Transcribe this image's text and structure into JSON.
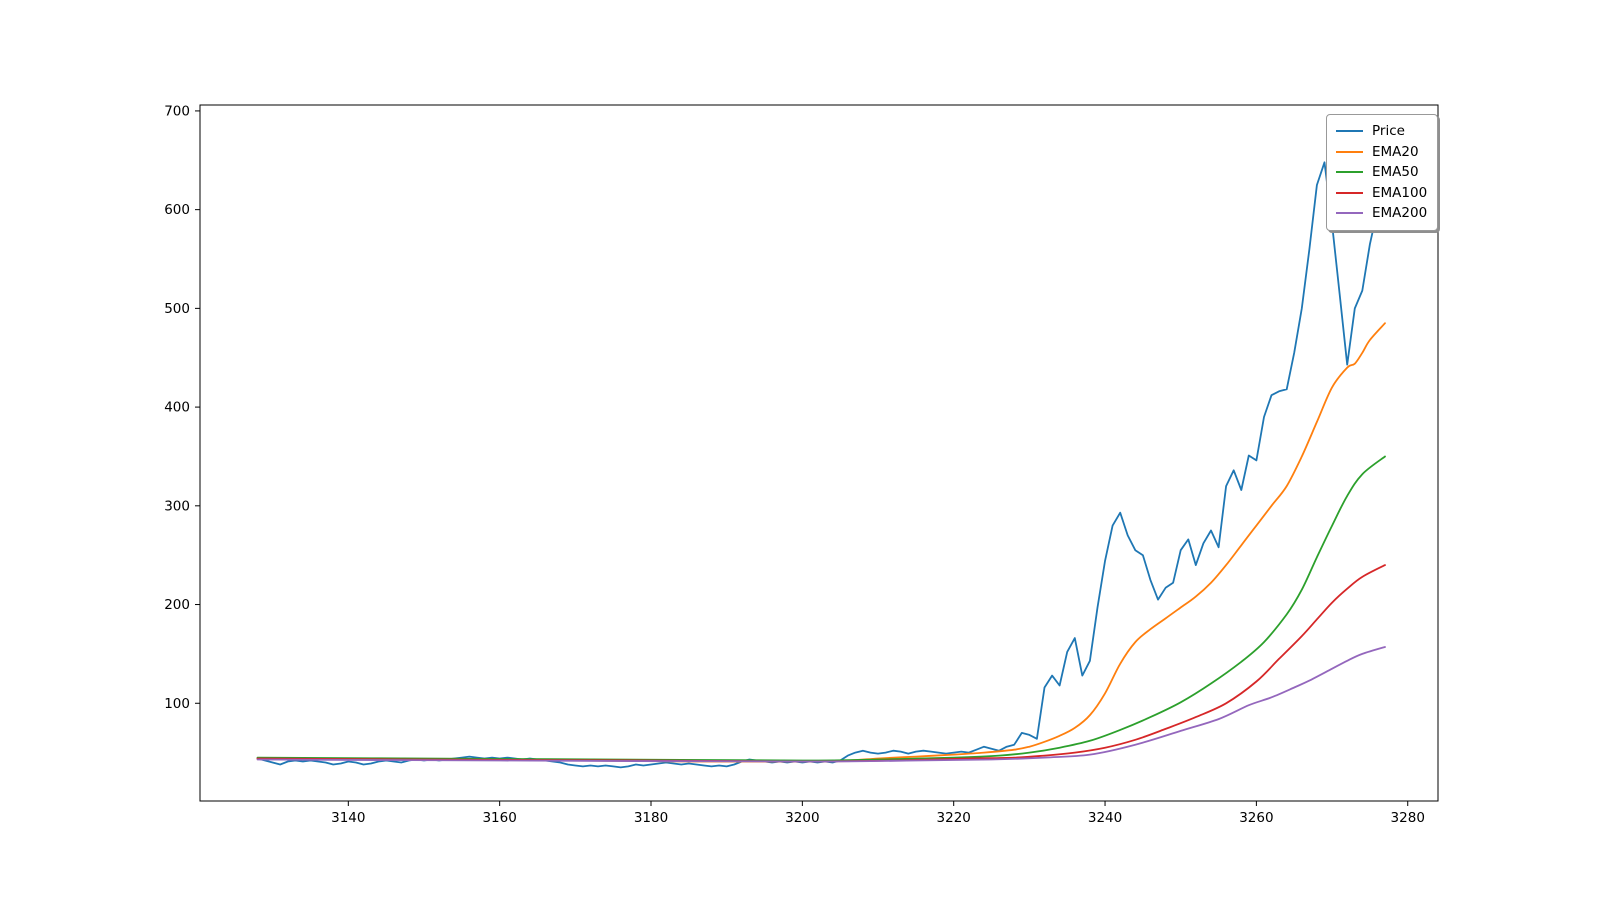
{
  "figure": {
    "background": "#ffffff",
    "axis_color": "#000000",
    "tick_color": "#000000"
  },
  "legend": {
    "position": "upper right",
    "entries": [
      {
        "label": "Price",
        "color": "#1f77b4"
      },
      {
        "label": "EMA20",
        "color": "#ff7f0e"
      },
      {
        "label": "EMA50",
        "color": "#2ca02c"
      },
      {
        "label": "EMA100",
        "color": "#d62728"
      },
      {
        "label": "EMA200",
        "color": "#9467bd"
      }
    ]
  },
  "chart_data": {
    "type": "line",
    "title": "",
    "xlabel": "",
    "ylabel": "",
    "grid": false,
    "legend_position": "upper right",
    "xlim": [
      3120.4,
      3284.0
    ],
    "ylim": [
      1,
      706
    ],
    "x_ticks": [
      3140,
      3160,
      3180,
      3200,
      3220,
      3240,
      3260,
      3280
    ],
    "y_ticks": [
      100,
      200,
      300,
      400,
      500,
      600,
      700
    ],
    "series": [
      {
        "name": "Price",
        "color": "#1f77b4",
        "smooth": false,
        "points": [
          [
            3128,
            44
          ],
          [
            3129,
            42
          ],
          [
            3130,
            40
          ],
          [
            3131,
            38
          ],
          [
            3132,
            41
          ],
          [
            3133,
            42
          ],
          [
            3134,
            41
          ],
          [
            3135,
            42
          ],
          [
            3136,
            41
          ],
          [
            3137,
            40
          ],
          [
            3138,
            38
          ],
          [
            3139,
            39
          ],
          [
            3140,
            41
          ],
          [
            3141,
            40
          ],
          [
            3142,
            38
          ],
          [
            3143,
            39
          ],
          [
            3144,
            41
          ],
          [
            3145,
            42
          ],
          [
            3146,
            41
          ],
          [
            3147,
            40
          ],
          [
            3148,
            42
          ],
          [
            3149,
            43
          ],
          [
            3150,
            42
          ],
          [
            3151,
            43
          ],
          [
            3152,
            42
          ],
          [
            3153,
            43
          ],
          [
            3154,
            44
          ],
          [
            3155,
            45
          ],
          [
            3156,
            46
          ],
          [
            3157,
            45
          ],
          [
            3158,
            44
          ],
          [
            3159,
            45
          ],
          [
            3160,
            44
          ],
          [
            3161,
            45
          ],
          [
            3162,
            44
          ],
          [
            3163,
            43
          ],
          [
            3164,
            44
          ],
          [
            3165,
            43
          ],
          [
            3166,
            42
          ],
          [
            3167,
            41
          ],
          [
            3168,
            40
          ],
          [
            3169,
            38
          ],
          [
            3170,
            37
          ],
          [
            3171,
            36
          ],
          [
            3172,
            37
          ],
          [
            3173,
            36
          ],
          [
            3174,
            37
          ],
          [
            3175,
            36
          ],
          [
            3176,
            35
          ],
          [
            3177,
            36
          ],
          [
            3178,
            38
          ],
          [
            3179,
            37
          ],
          [
            3180,
            38
          ],
          [
            3181,
            39
          ],
          [
            3182,
            40
          ],
          [
            3183,
            39
          ],
          [
            3184,
            38
          ],
          [
            3185,
            39
          ],
          [
            3186,
            38
          ],
          [
            3187,
            37
          ],
          [
            3188,
            36
          ],
          [
            3189,
            37
          ],
          [
            3190,
            36
          ],
          [
            3191,
            38
          ],
          [
            3192,
            41
          ],
          [
            3193,
            43
          ],
          [
            3194,
            42
          ],
          [
            3195,
            41
          ],
          [
            3196,
            40
          ],
          [
            3197,
            41
          ],
          [
            3198,
            40
          ],
          [
            3199,
            41
          ],
          [
            3200,
            40
          ],
          [
            3201,
            41
          ],
          [
            3202,
            40
          ],
          [
            3203,
            41
          ],
          [
            3204,
            40
          ],
          [
            3205,
            42
          ],
          [
            3206,
            47
          ],
          [
            3207,
            50
          ],
          [
            3208,
            52
          ],
          [
            3209,
            50
          ],
          [
            3210,
            49
          ],
          [
            3211,
            50
          ],
          [
            3212,
            52
          ],
          [
            3213,
            51
          ],
          [
            3214,
            49
          ],
          [
            3215,
            51
          ],
          [
            3216,
            52
          ],
          [
            3217,
            51
          ],
          [
            3218,
            50
          ],
          [
            3219,
            49
          ],
          [
            3220,
            50
          ],
          [
            3221,
            51
          ],
          [
            3222,
            50
          ],
          [
            3223,
            53
          ],
          [
            3224,
            56
          ],
          [
            3225,
            54
          ],
          [
            3226,
            52
          ],
          [
            3227,
            56
          ],
          [
            3228,
            58
          ],
          [
            3229,
            70
          ],
          [
            3230,
            68
          ],
          [
            3231,
            64
          ],
          [
            3232,
            116
          ],
          [
            3233,
            128
          ],
          [
            3234,
            118
          ],
          [
            3235,
            152
          ],
          [
            3236,
            166
          ],
          [
            3237,
            128
          ],
          [
            3238,
            143
          ],
          [
            3239,
            197
          ],
          [
            3240,
            244
          ],
          [
            3241,
            280
          ],
          [
            3242,
            293
          ],
          [
            3243,
            270
          ],
          [
            3244,
            255
          ],
          [
            3245,
            250
          ],
          [
            3246,
            225
          ],
          [
            3247,
            205
          ],
          [
            3248,
            217
          ],
          [
            3249,
            222
          ],
          [
            3250,
            255
          ],
          [
            3251,
            266
          ],
          [
            3252,
            240
          ],
          [
            3253,
            262
          ],
          [
            3254,
            275
          ],
          [
            3255,
            258
          ],
          [
            3256,
            320
          ],
          [
            3257,
            336
          ],
          [
            3258,
            316
          ],
          [
            3259,
            351
          ],
          [
            3260,
            346
          ],
          [
            3261,
            390
          ],
          [
            3262,
            412
          ],
          [
            3263,
            416
          ],
          [
            3264,
            418
          ],
          [
            3265,
            455
          ],
          [
            3266,
            500
          ],
          [
            3267,
            560
          ],
          [
            3268,
            625
          ],
          [
            3269,
            648
          ],
          [
            3270,
            585
          ],
          [
            3271,
            515
          ],
          [
            3272,
            443
          ],
          [
            3273,
            500
          ],
          [
            3274,
            518
          ],
          [
            3275,
            565
          ],
          [
            3276,
            600
          ],
          [
            3277,
            628
          ]
        ]
      },
      {
        "name": "EMA20",
        "color": "#ff7f0e",
        "smooth": true,
        "points": [
          [
            3128,
            44
          ],
          [
            3140,
            43
          ],
          [
            3155,
            43
          ],
          [
            3170,
            42
          ],
          [
            3185,
            41
          ],
          [
            3200,
            41
          ],
          [
            3206,
            42
          ],
          [
            3210,
            44
          ],
          [
            3215,
            46
          ],
          [
            3220,
            48
          ],
          [
            3224,
            50
          ],
          [
            3228,
            53
          ],
          [
            3230,
            56
          ],
          [
            3232,
            61
          ],
          [
            3234,
            67
          ],
          [
            3236,
            75
          ],
          [
            3238,
            88
          ],
          [
            3240,
            110
          ],
          [
            3242,
            140
          ],
          [
            3244,
            162
          ],
          [
            3246,
            175
          ],
          [
            3248,
            186
          ],
          [
            3250,
            197
          ],
          [
            3252,
            208
          ],
          [
            3254,
            222
          ],
          [
            3256,
            240
          ],
          [
            3258,
            260
          ],
          [
            3260,
            280
          ],
          [
            3262,
            300
          ],
          [
            3264,
            320
          ],
          [
            3266,
            350
          ],
          [
            3268,
            385
          ],
          [
            3270,
            420
          ],
          [
            3272,
            440
          ],
          [
            3273,
            444
          ],
          [
            3274,
            455
          ],
          [
            3275,
            468
          ],
          [
            3277,
            485
          ]
        ]
      },
      {
        "name": "EMA50",
        "color": "#2ca02c",
        "smooth": true,
        "points": [
          [
            3128,
            45
          ],
          [
            3150,
            44
          ],
          [
            3175,
            43
          ],
          [
            3200,
            42
          ],
          [
            3210,
            43
          ],
          [
            3220,
            45
          ],
          [
            3226,
            47
          ],
          [
            3230,
            50
          ],
          [
            3234,
            55
          ],
          [
            3238,
            62
          ],
          [
            3242,
            73
          ],
          [
            3246,
            86
          ],
          [
            3250,
            101
          ],
          [
            3254,
            120
          ],
          [
            3258,
            142
          ],
          [
            3261,
            162
          ],
          [
            3264,
            190
          ],
          [
            3266,
            215
          ],
          [
            3268,
            248
          ],
          [
            3270,
            280
          ],
          [
            3272,
            310
          ],
          [
            3274,
            332
          ],
          [
            3277,
            350
          ]
        ]
      },
      {
        "name": "EMA100",
        "color": "#d62728",
        "smooth": true,
        "points": [
          [
            3128,
            44
          ],
          [
            3150,
            43
          ],
          [
            3180,
            42
          ],
          [
            3200,
            41
          ],
          [
            3212,
            42
          ],
          [
            3222,
            44
          ],
          [
            3228,
            45
          ],
          [
            3232,
            47
          ],
          [
            3236,
            50
          ],
          [
            3240,
            55
          ],
          [
            3244,
            63
          ],
          [
            3248,
            74
          ],
          [
            3252,
            86
          ],
          [
            3256,
            100
          ],
          [
            3260,
            122
          ],
          [
            3263,
            145
          ],
          [
            3266,
            168
          ],
          [
            3268,
            185
          ],
          [
            3270,
            202
          ],
          [
            3272,
            216
          ],
          [
            3274,
            228
          ],
          [
            3277,
            240
          ]
        ]
      },
      {
        "name": "EMA200",
        "color": "#9467bd",
        "smooth": true,
        "points": [
          [
            3128,
            43
          ],
          [
            3160,
            42
          ],
          [
            3200,
            41
          ],
          [
            3215,
            42
          ],
          [
            3225,
            43
          ],
          [
            3232,
            45
          ],
          [
            3238,
            48
          ],
          [
            3244,
            58
          ],
          [
            3250,
            72
          ],
          [
            3255,
            84
          ],
          [
            3259,
            98
          ],
          [
            3262,
            106
          ],
          [
            3265,
            116
          ],
          [
            3267,
            123
          ],
          [
            3270,
            135
          ],
          [
            3272,
            143
          ],
          [
            3274,
            150
          ],
          [
            3277,
            157
          ]
        ]
      }
    ]
  }
}
